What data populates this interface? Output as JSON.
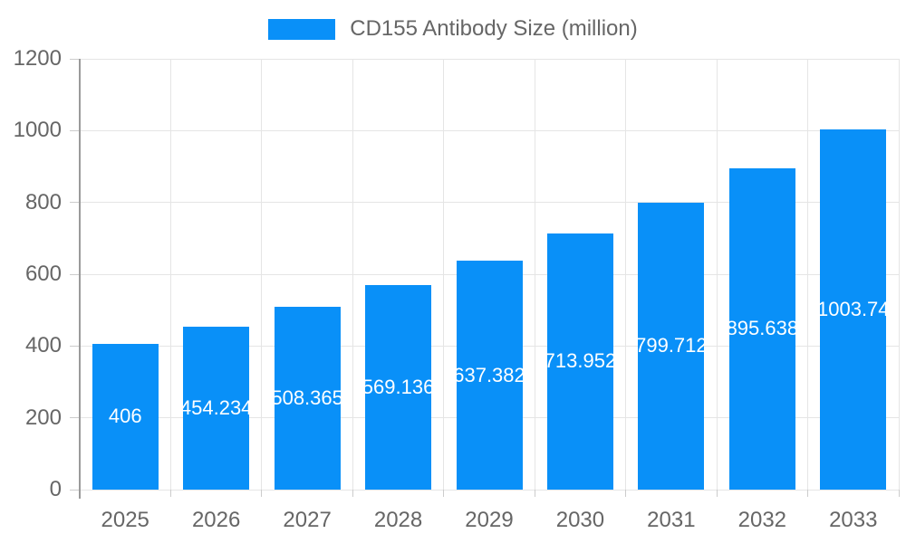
{
  "legend": {
    "label": "CD155 Antibody Size (million)"
  },
  "colors": {
    "bar": "#0990f8",
    "grid": "#e5e5e5",
    "axis": "#9a9a9a",
    "tick": "#cccccc",
    "text": "#666666",
    "value_label": "#ffffff",
    "background": "#ffffff"
  },
  "chart_data": {
    "type": "bar",
    "series_name": "CD155 Antibody Size (million)",
    "categories": [
      "2025",
      "2026",
      "2027",
      "2028",
      "2029",
      "2030",
      "2031",
      "2032",
      "2033"
    ],
    "values": [
      406,
      454.234,
      508.365,
      569.136,
      637.382,
      713.952,
      799.712,
      895.638,
      1003.74
    ],
    "value_labels": [
      "406",
      "454.234",
      "508.365",
      "569.136",
      "637.382",
      "713.952",
      "799.712",
      "895.638",
      "1003.74"
    ],
    "xlabel": "",
    "ylabel": "",
    "ylim": [
      0,
      1200
    ],
    "yticks": [
      0,
      200,
      400,
      600,
      800,
      1000,
      1200
    ],
    "grid": true,
    "legend_position": "top"
  }
}
